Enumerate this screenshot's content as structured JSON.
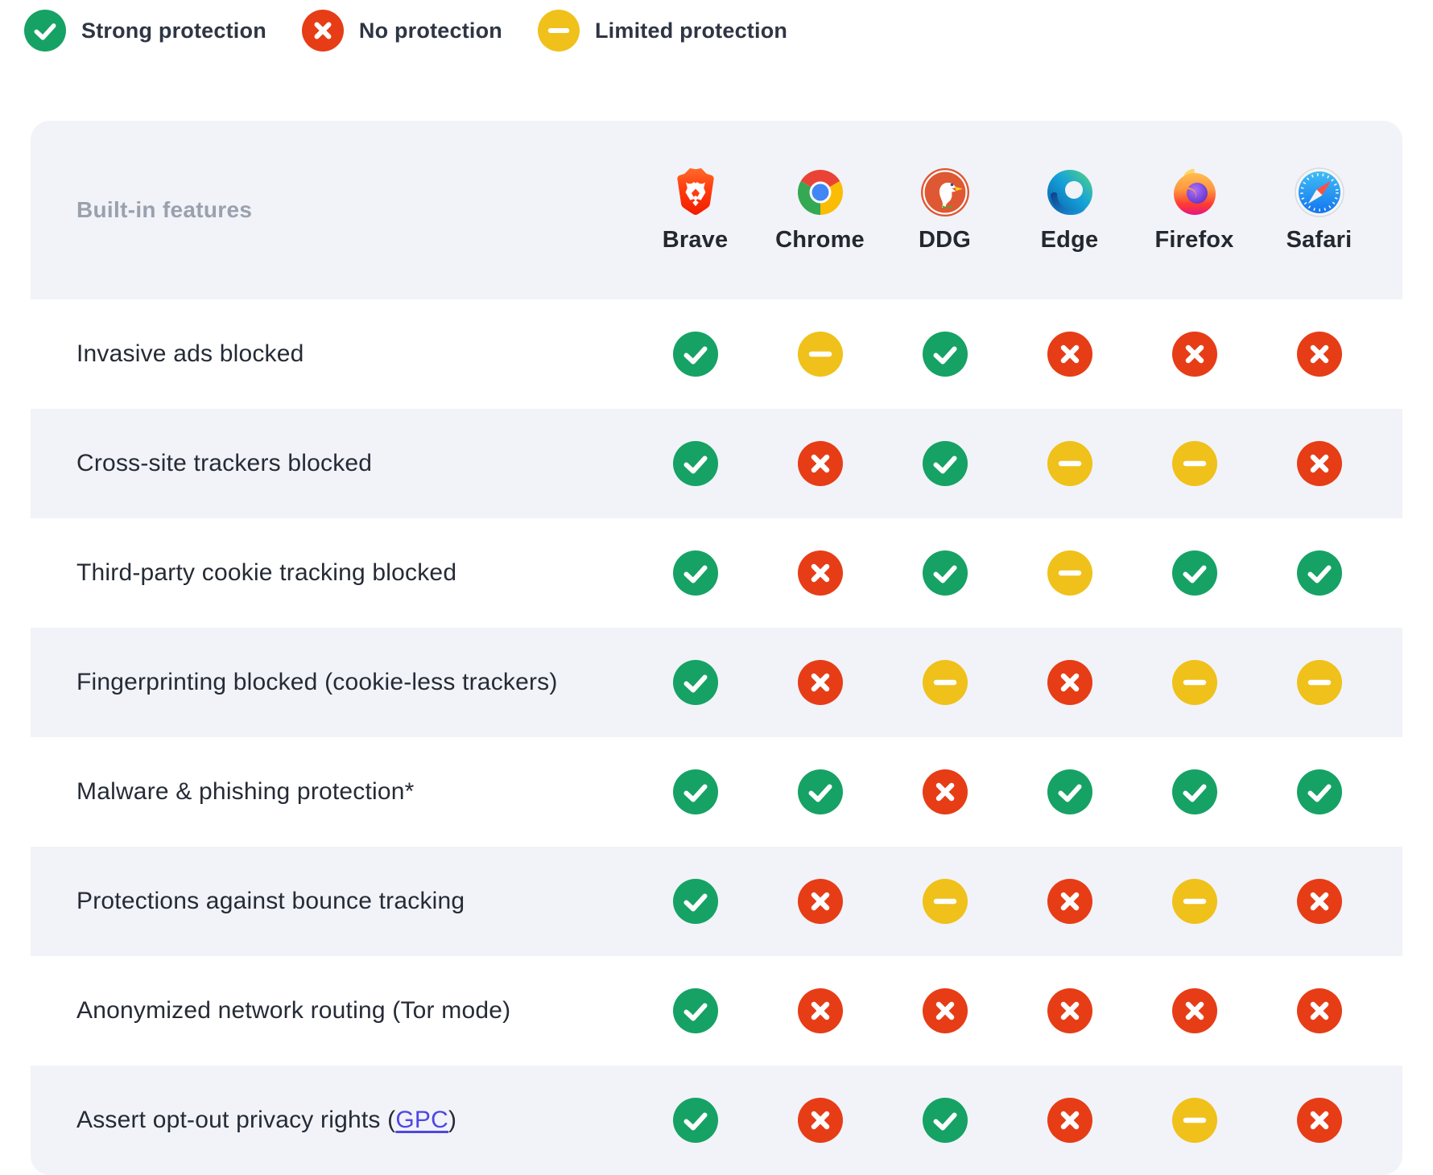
{
  "legend": [
    {
      "status": "strong",
      "label": "Strong protection"
    },
    {
      "status": "none",
      "label": "No protection"
    },
    {
      "status": "limited",
      "label": "Limited protection"
    }
  ],
  "colors": {
    "strong": "#16a264",
    "none": "#e63d17",
    "limited": "#efc11a",
    "link": "#4f46e5",
    "card_background": "#f1f3f8",
    "row_white": "#ffffff",
    "text_dark": "#252b36",
    "header_gray": "#9aa1ae"
  },
  "table": {
    "features_header": "Built-in features",
    "browsers": [
      {
        "name": "Brave"
      },
      {
        "name": "Chrome"
      },
      {
        "name": "DDG"
      },
      {
        "name": "Edge"
      },
      {
        "name": "Firefox"
      },
      {
        "name": "Safari"
      }
    ],
    "status_meanings": {
      "strong": "Strong protection",
      "none": "No protection",
      "limited": "Limited protection"
    },
    "rows": [
      {
        "feature": "Invasive ads blocked",
        "values": [
          "strong",
          "limited",
          "strong",
          "none",
          "none",
          "none"
        ]
      },
      {
        "feature": "Cross-site trackers blocked",
        "values": [
          "strong",
          "none",
          "strong",
          "limited",
          "limited",
          "none"
        ]
      },
      {
        "feature": "Third-party cookie tracking blocked",
        "values": [
          "strong",
          "none",
          "strong",
          "limited",
          "strong",
          "strong"
        ]
      },
      {
        "feature": "Fingerprinting blocked (cookie-less trackers)",
        "values": [
          "strong",
          "none",
          "limited",
          "none",
          "limited",
          "limited"
        ]
      },
      {
        "feature": "Malware & phishing protection*",
        "values": [
          "strong",
          "strong",
          "none",
          "strong",
          "strong",
          "strong"
        ]
      },
      {
        "feature": "Protections against bounce tracking",
        "values": [
          "strong",
          "none",
          "limited",
          "none",
          "limited",
          "none"
        ]
      },
      {
        "feature": "Anonymized network routing (Tor mode)",
        "values": [
          "strong",
          "none",
          "none",
          "none",
          "none",
          "none"
        ]
      },
      {
        "feature": "Assert opt-out privacy rights (GPC)",
        "feature_parts": {
          "prefix": "Assert opt-out privacy rights (",
          "link": "GPC",
          "suffix": ")"
        },
        "values": [
          "strong",
          "none",
          "strong",
          "none",
          "limited",
          "none"
        ]
      }
    ]
  }
}
